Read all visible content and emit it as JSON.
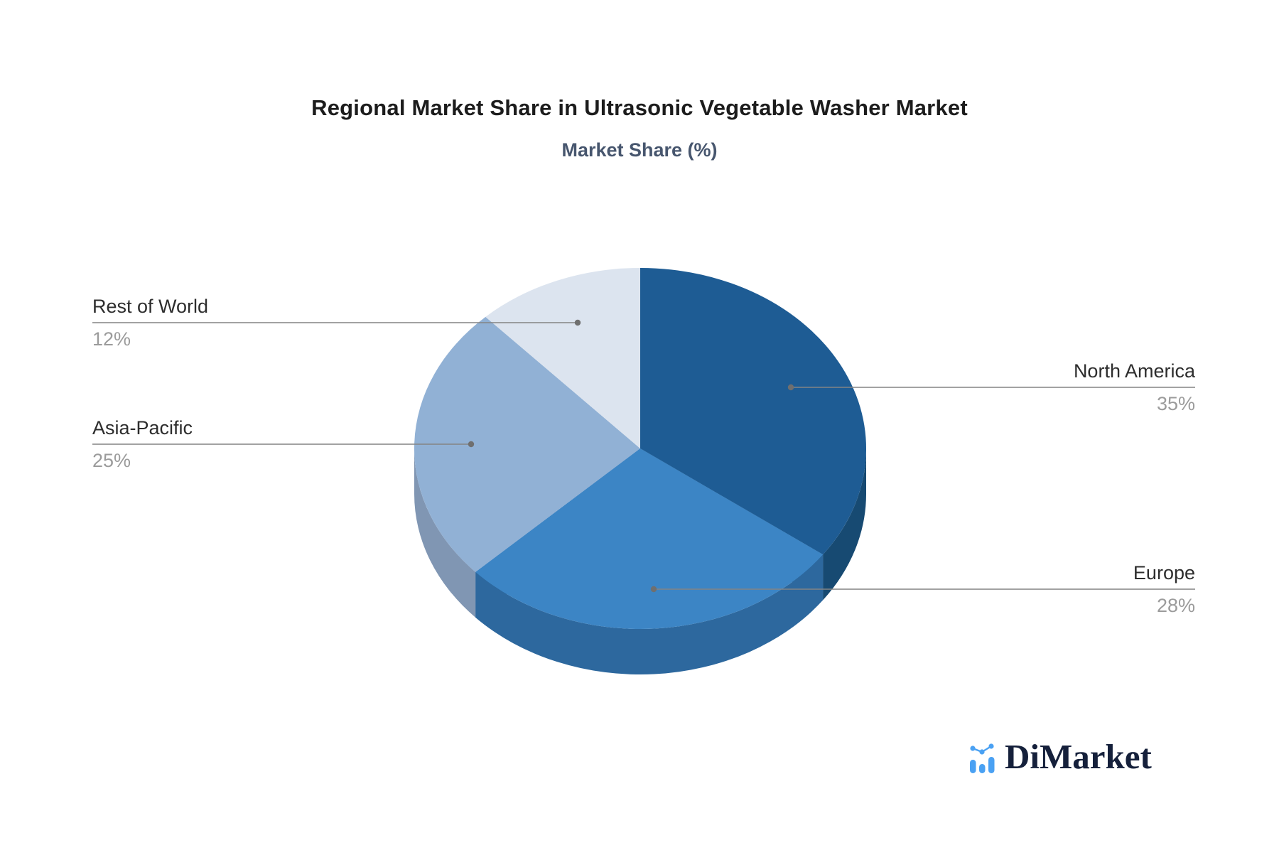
{
  "header": {
    "title": "Regional Market Share in Ultrasonic Vegetable Washer Market",
    "subtitle": "Market Share (%)"
  },
  "chart_data": {
    "type": "pie",
    "title": "Regional Market Share in Ultrasonic Vegetable Washer Market",
    "subtitle": "Market Share (%)",
    "unit": "%",
    "style": "3d-pie",
    "start_angle": "top",
    "direction": "clockwise",
    "slices": [
      {
        "name": "North America",
        "value": 35,
        "label": "35%",
        "color": "#1e5c94",
        "side_color": "#174a72"
      },
      {
        "name": "Europe",
        "value": 28,
        "label": "28%",
        "color": "#3c85c5",
        "side_color": "#2d689e"
      },
      {
        "name": "Asia-Pacific",
        "value": 25,
        "label": "25%",
        "color": "#91b1d5",
        "side_color": "#8096b3"
      },
      {
        "name": "Rest of World",
        "value": 12,
        "label": "12%",
        "color": "#dce4ef",
        "side_color": "#c3cedf"
      }
    ],
    "leader_line_color": "#848484",
    "leader_dot_color": "#6f6f6f",
    "label_color": "#2d2d2d",
    "value_color": "#9b9b9b"
  },
  "branding": {
    "logo_text": "DiMarket",
    "logo_text_color": "#15203b",
    "logo_mark_color": "#4aa1f3"
  }
}
